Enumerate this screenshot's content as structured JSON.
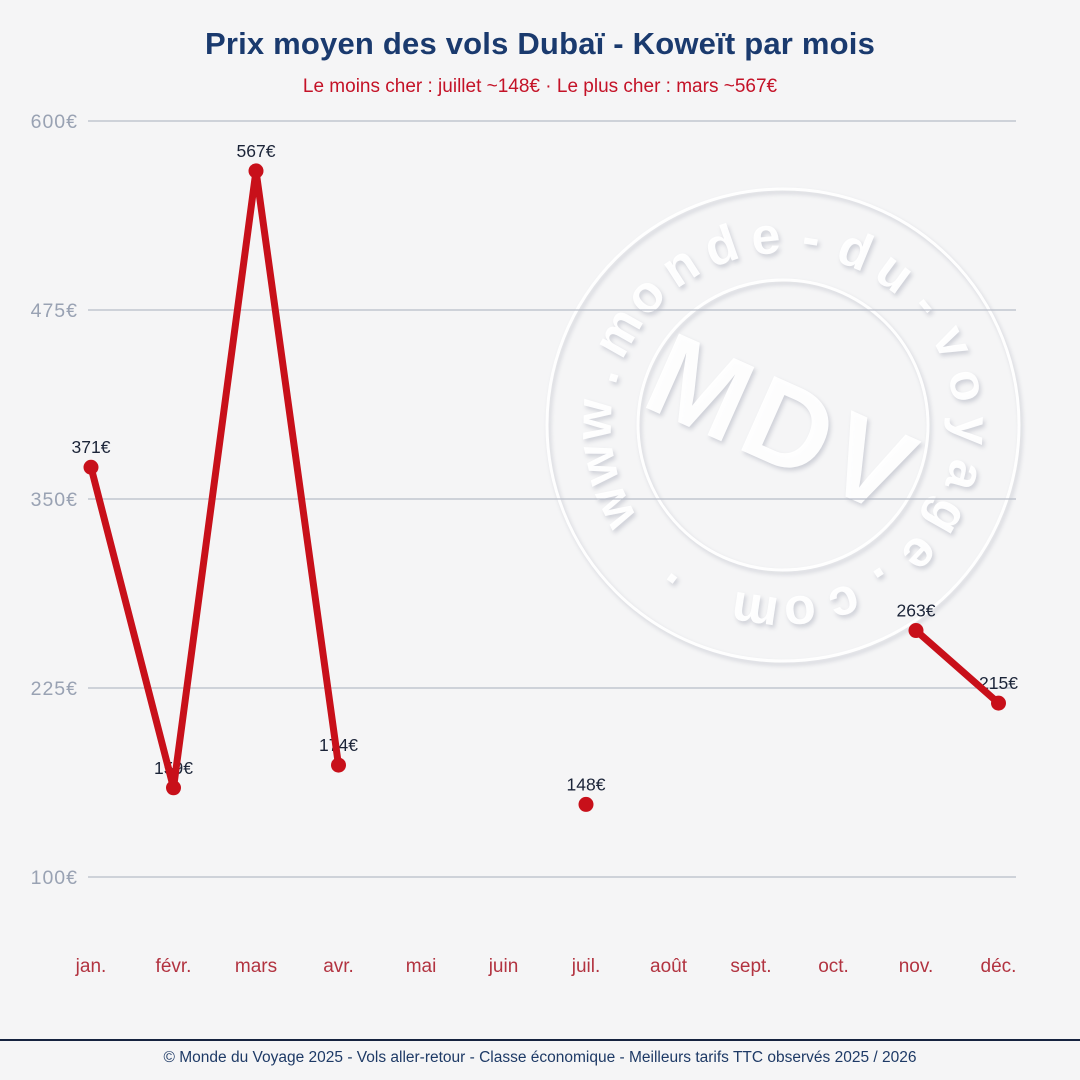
{
  "title": "Prix moyen des vols Dubaï - Koweït par mois",
  "subtitle": "Le moins cher : juillet ~148€ · Le plus cher : mars ~567€",
  "footer": {
    "text": "© Monde du Voyage 2025 - Vols aller-retour - Classe économique - Meilleurs tarifs TTC observés 2025 / 2026"
  },
  "watermark": {
    "ring_text": "www.monde-du-voyage.com · ",
    "center_text": "MDV"
  },
  "chart_data": {
    "type": "line",
    "title": "Prix moyen des vols Dubaï - Koweït par mois",
    "subtitle": "Le moins cher : juillet ~148€ · Le plus cher : mars ~567€",
    "categories": [
      "jan.",
      "févr.",
      "mars",
      "avr.",
      "mai",
      "juin",
      "juil.",
      "août",
      "sept.",
      "oct.",
      "nov.",
      "déc."
    ],
    "values": [
      371,
      159,
      567,
      174,
      null,
      null,
      148,
      null,
      null,
      null,
      263,
      215
    ],
    "point_labels": [
      "371€",
      "159€",
      "567€",
      "174€",
      null,
      null,
      "148€",
      null,
      null,
      null,
      "263€",
      "215€"
    ],
    "unit": "€",
    "ylim": [
      100,
      600
    ],
    "yticks": [
      600,
      475,
      350,
      225,
      100
    ],
    "ytick_labels": [
      "600€",
      "475€",
      "350€",
      "225€",
      "100€"
    ],
    "grid": true,
    "legend": false,
    "annotations": {
      "cheapest": "juillet ~148€",
      "most_expensive": "mars ~567€"
    }
  },
  "colors": {
    "background": "#f5f5f6",
    "title": "#1a3a6e",
    "subtitle": "#c41227",
    "line": "#c8101a",
    "point": "#c8101a",
    "point_label": "#1b2438",
    "ytick_label": "#99a2b3",
    "month_label": "#b23340",
    "grid": "#b7bdc8",
    "footer_text": "#1e3a66",
    "footer_line": "#16233f",
    "watermark": "rgba(255,255,255,0.95)"
  }
}
